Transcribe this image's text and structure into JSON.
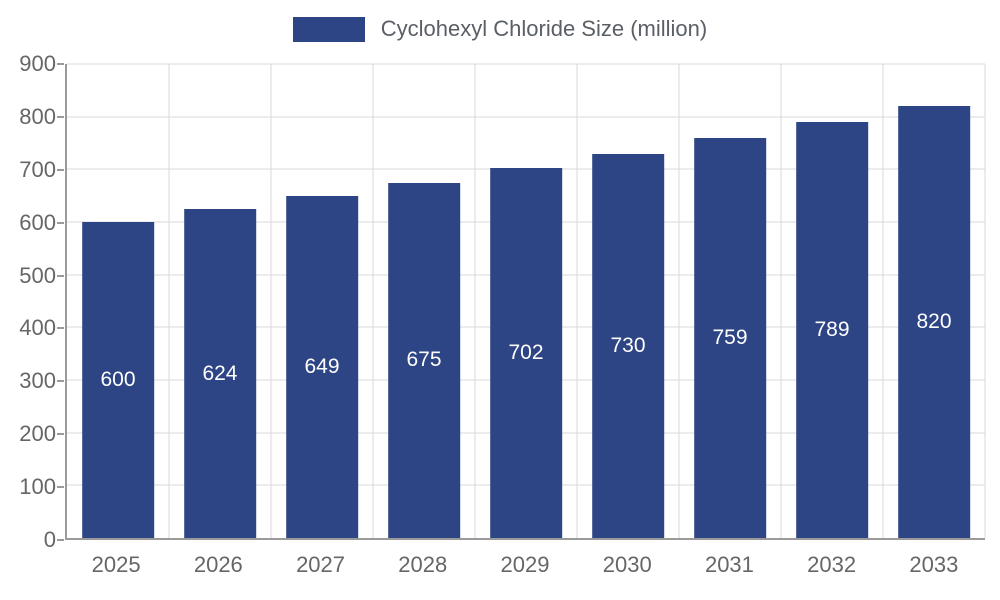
{
  "chart_data": {
    "type": "bar",
    "title": "Cyclohexyl Chloride Size (million)",
    "categories": [
      "2025",
      "2026",
      "2027",
      "2028",
      "2029",
      "2030",
      "2031",
      "2032",
      "2033"
    ],
    "values": [
      600,
      624,
      649,
      675,
      702,
      730,
      759,
      789,
      820
    ],
    "xlabel": "",
    "ylabel": "",
    "ylim": [
      0,
      900
    ],
    "yticks": [
      0,
      100,
      200,
      300,
      400,
      500,
      600,
      700,
      800,
      900
    ],
    "grid": true,
    "legend_position": "top-center",
    "bar_color": "#2e4585",
    "value_label_color": "#ffffff"
  }
}
